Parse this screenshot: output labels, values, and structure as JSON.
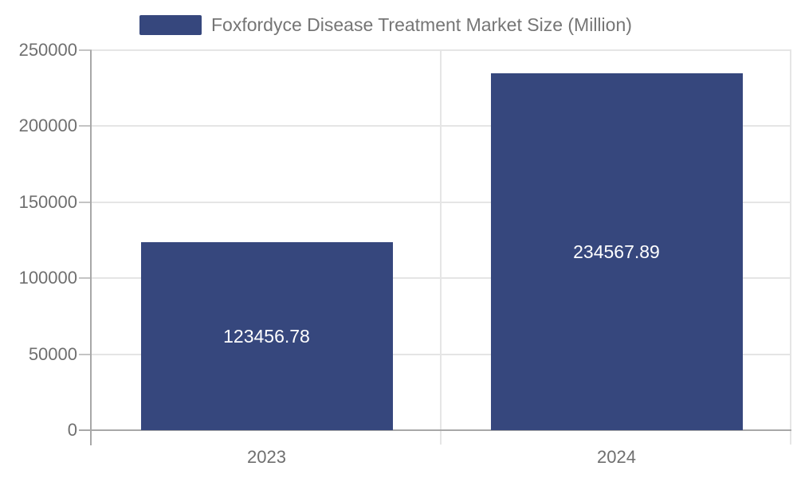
{
  "legend": {
    "label": "Foxfordyce Disease Treatment Market Size (Million)"
  },
  "chart_data": {
    "type": "bar",
    "title": "Foxfordyce Disease Treatment Market Size (Million)",
    "categories": [
      "2023",
      "2024"
    ],
    "values": [
      123456.78,
      234567.89
    ],
    "value_labels": [
      "123456.78",
      "234567.89"
    ],
    "series": [
      {
        "name": "Foxfordyce Disease Treatment Market Size (Million)",
        "values": [
          123456.78,
          234567.89
        ]
      }
    ],
    "xlabel": "",
    "ylabel": "",
    "ylim": [
      0,
      250000
    ],
    "yticks": [
      0,
      50000,
      100000,
      150000,
      200000,
      250000
    ],
    "ytick_labels": [
      "0",
      "50000",
      "100000",
      "150000",
      "200000",
      "250000"
    ],
    "grid": true,
    "legend_position": "top-center",
    "value_label_position": "inside-center",
    "colors": {
      "bar": "#36477D",
      "grid_line": "#E5E5E5",
      "axis_line": "#A8A8A8",
      "tick_line": "#C4C4C4",
      "tick_text": "#6F6F6F",
      "legend_text": "#757575",
      "value_text": "#FFFFFF",
      "background": "#FFFFFF"
    }
  }
}
